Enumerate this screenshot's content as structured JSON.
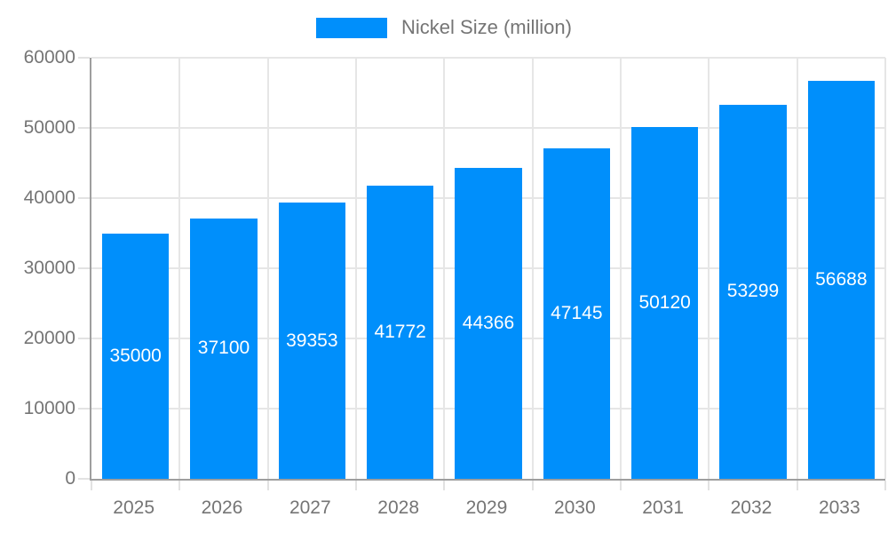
{
  "chart_data": {
    "type": "bar",
    "title": "",
    "legend": {
      "label": "Nickel Size (million)",
      "position": "top"
    },
    "categories": [
      "2025",
      "2026",
      "2027",
      "2028",
      "2029",
      "2030",
      "2031",
      "2032",
      "2033"
    ],
    "series": [
      {
        "name": "Nickel Size (million)",
        "values": [
          35000,
          37100,
          39353,
          41772,
          44366,
          47145,
          50120,
          53299,
          56688
        ]
      }
    ],
    "xlabel": "",
    "ylabel": "",
    "ylim": [
      0,
      60000
    ],
    "yticks": [
      0,
      10000,
      20000,
      30000,
      40000,
      50000,
      60000
    ],
    "grid": true,
    "legend_position": "top",
    "colors": {
      "bar": "#008FFB",
      "bar_label_text": "#ffffff",
      "axis_label_text": "#757575",
      "legend_text": "#757575",
      "gridline": "#e6e6e6",
      "axis_line": "#9e9e9e",
      "background": "#ffffff"
    }
  }
}
